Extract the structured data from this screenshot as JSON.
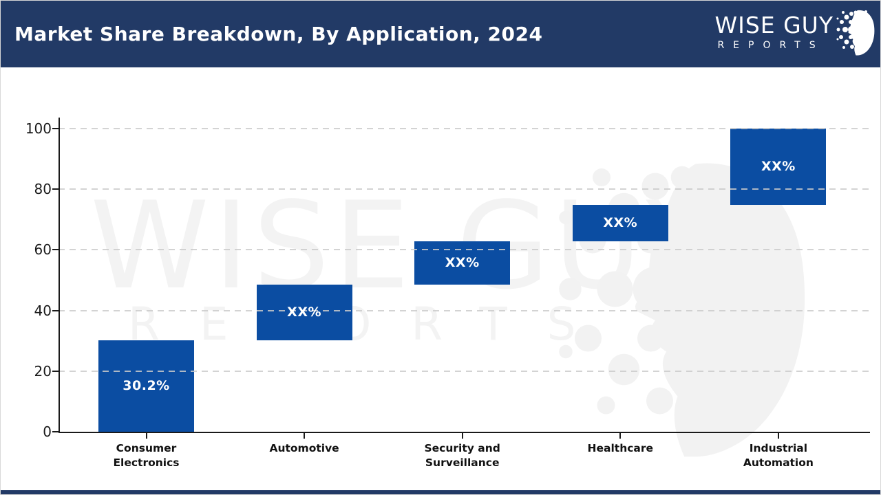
{
  "header": {
    "title": "Market Share Breakdown, By Application, 2024",
    "logo": {
      "brand_top": "WISE GUY",
      "brand_bottom": "REPORTS"
    }
  },
  "watermark": {
    "line1": "WISE GUY",
    "line2": "REPORTS"
  },
  "chart_data": {
    "type": "bar",
    "subtype": "waterfall",
    "title": "Market Share Breakdown, By Application, 2024",
    "categories": [
      "Consumer Electronics",
      "Automotive",
      "Security and Surveillance",
      "Healthcare",
      "Industrial Automation"
    ],
    "series": [
      {
        "name": "Market Share",
        "segments": [
          {
            "category": "Consumer Electronics",
            "start": 0,
            "end": 30.2,
            "value": 30.2,
            "label": "30.2%"
          },
          {
            "category": "Automotive",
            "start": 30.2,
            "end": 48.5,
            "value": 18.3,
            "label": "XX%"
          },
          {
            "category": "Security and Surveillance",
            "start": 48.5,
            "end": 62.8,
            "value": 14.3,
            "label": "XX%"
          },
          {
            "category": "Healthcare",
            "start": 62.8,
            "end": 74.8,
            "value": 12.0,
            "label": "XX%"
          },
          {
            "category": "Industrial Automation",
            "start": 74.8,
            "end": 100,
            "value": 25.2,
            "label": "XX%"
          }
        ]
      }
    ],
    "xlabel": "",
    "ylabel": "",
    "ylim": [
      0,
      100
    ],
    "yticks": [
      0,
      20,
      40,
      60,
      80,
      100
    ],
    "grid": "horizontal-dashed",
    "legend": "none",
    "bar_color": "#0B4DA2",
    "bar_label_color": "#ffffff",
    "unit": "percent"
  },
  "colors": {
    "header_bg": "#223A66",
    "footer_bg": "#223A66",
    "bar": "#0B4DA2",
    "watermark": "#f3f3f3",
    "gridline": "#cbcbcb",
    "axis": "#1a1a1a"
  }
}
